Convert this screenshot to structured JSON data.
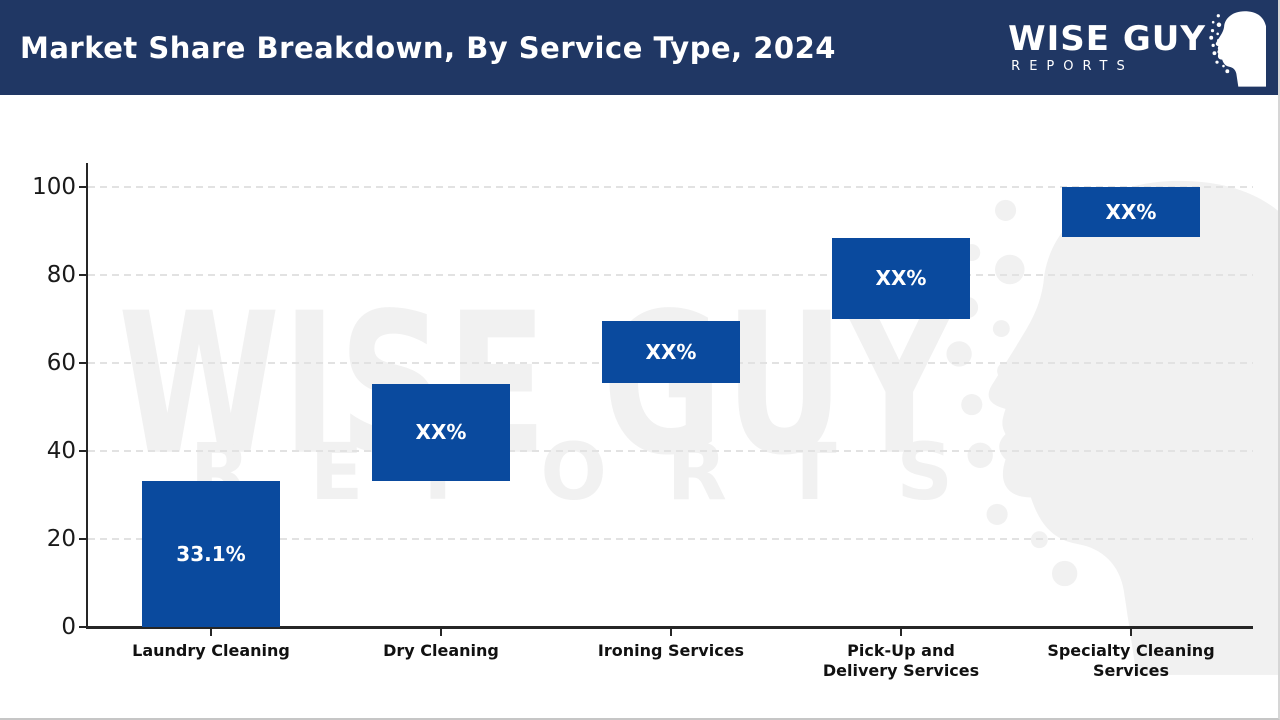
{
  "header": {
    "title": "Market Share Breakdown, By Service Type, 2024",
    "logo": {
      "name_line": "WISE GUY",
      "sub_line": "REPORTS"
    }
  },
  "watermark": {
    "line1": "WISE GUY",
    "line2": "REPORTS"
  },
  "chart_data": {
    "type": "bar",
    "subtype": "waterfall",
    "title": "Market Share Breakdown, By Service Type, 2024",
    "xlabel": "",
    "ylabel": "",
    "categories": [
      "Laundry Cleaning",
      "Dry Cleaning",
      "Ironing Services",
      "Pick-Up and Delivery Services",
      "Specialty Cleaning Services"
    ],
    "bars": [
      {
        "category_lines": [
          "Laundry Cleaning"
        ],
        "start": 0,
        "end": 33.1,
        "label": "33.1%"
      },
      {
        "category_lines": [
          "Dry Cleaning"
        ],
        "start": 33.2,
        "end": 55.3,
        "label": "XX%"
      },
      {
        "category_lines": [
          "Ironing Services"
        ],
        "start": 55.4,
        "end": 69.5,
        "label": "XX%"
      },
      {
        "category_lines": [
          "Pick-Up and",
          "Delivery Services"
        ],
        "start": 70.1,
        "end": 88.4,
        "label": "XX%"
      },
      {
        "category_lines": [
          "Specialty Cleaning",
          "Services"
        ],
        "start": 88.7,
        "end": 100.0,
        "label": "XX%"
      }
    ],
    "y_ticks": [
      0,
      20,
      40,
      60,
      80,
      100
    ],
    "ylim": [
      0,
      105.5
    ],
    "legend": "none",
    "grid": {
      "horizontal": true,
      "style": "dashed"
    },
    "colors": {
      "bar": "#0a4a9e",
      "bar_label": "#ffffff",
      "header_bg": "#203764",
      "axis": "#262626",
      "grid": "#e2e2e2",
      "tick_label": "#1a1a1a",
      "watermark": "#f1f1f1"
    }
  }
}
